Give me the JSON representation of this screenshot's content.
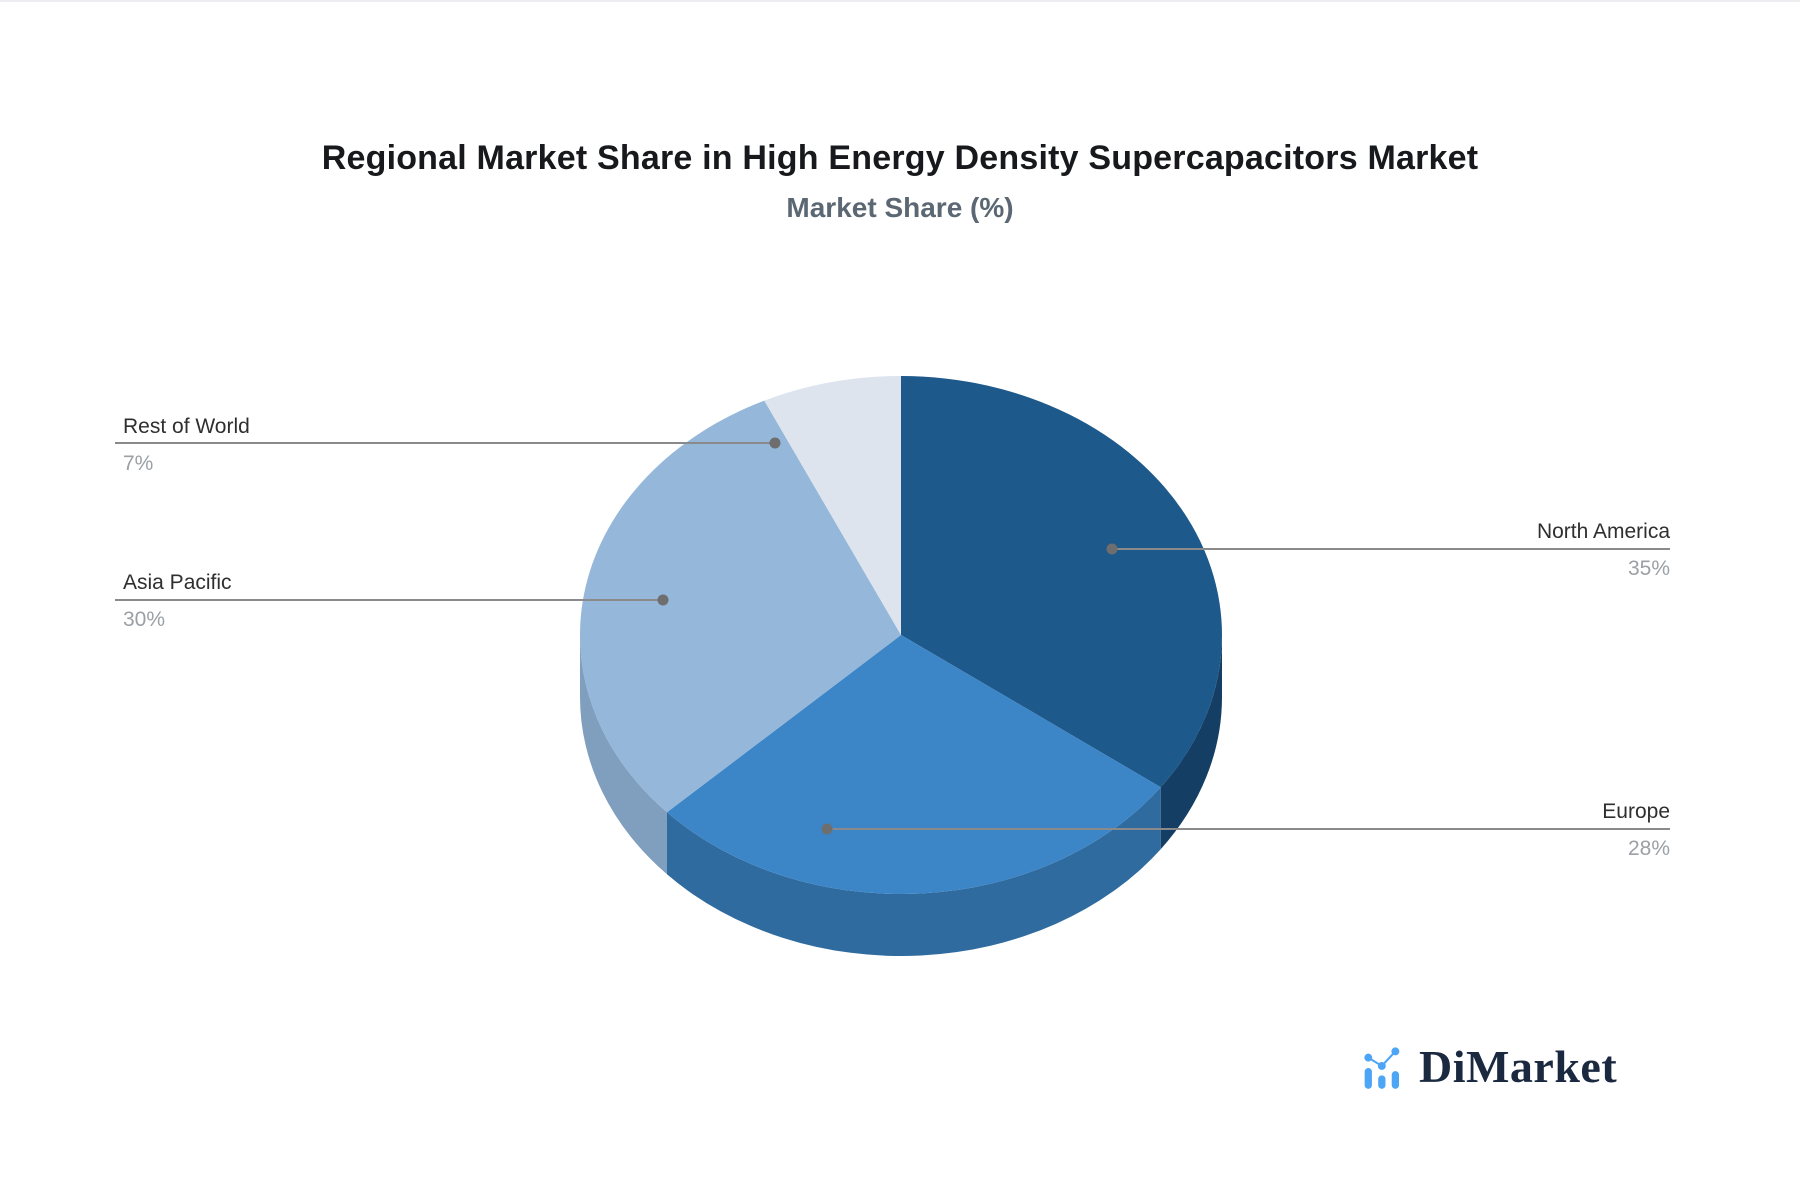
{
  "chart_data": {
    "type": "pie",
    "style": "3d",
    "title": "Regional Market Share in High Energy Density Supercapacitors Market",
    "subtitle": "Market Share (%)",
    "unit": "%",
    "total": 100,
    "direction": "clockwise",
    "start_angle_deg": 0,
    "legend_position": "callout-labels",
    "slices": [
      {
        "label": "North America",
        "value": 35,
        "pct_label": "35%",
        "color": "#1e598c",
        "side_color": "#143e63"
      },
      {
        "label": "Europe",
        "value": 28,
        "pct_label": "28%",
        "color": "#3c86c8",
        "side_color": "#2f6b9f"
      },
      {
        "label": "Asia Pacific",
        "value": 30,
        "pct_label": "30%",
        "color": "#95b7da",
        "side_color": "#809ebd"
      },
      {
        "label": "Rest of World",
        "value": 7,
        "pct_label": "7%",
        "color": "#dde4ee",
        "side_color": "#b9c6d8"
      }
    ],
    "callout_line_color": "#8a8a8a",
    "callout_dot_color": "#6e6e6e",
    "label_color": "#2f2f2f",
    "pct_color": "#9aa0a6"
  },
  "logo": {
    "text": "DiMarket",
    "icon_color": "#4da5f5",
    "text_color": "#1b2940"
  }
}
